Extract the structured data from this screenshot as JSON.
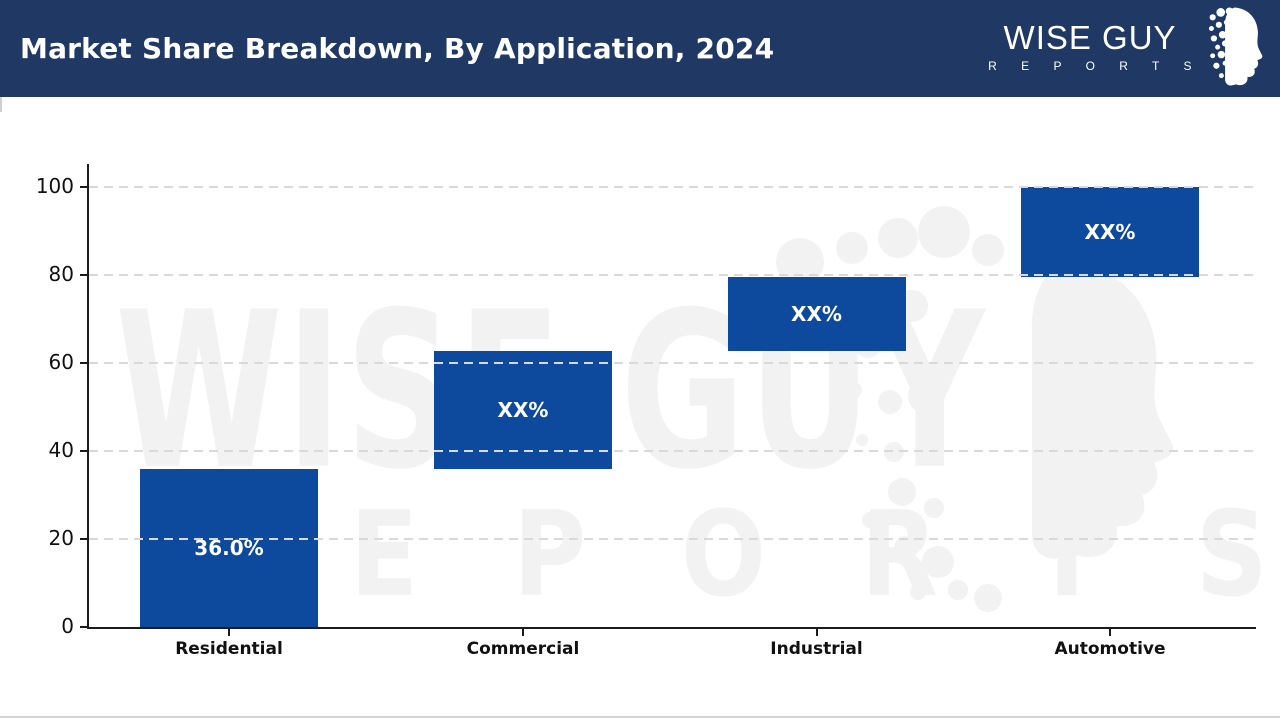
{
  "header": {
    "title": "Market Share Breakdown, By Application, 2024",
    "bg_color": "#203864",
    "logo": {
      "line1": "WISE GUY",
      "line2": "R E P O R T S"
    }
  },
  "watermark": {
    "line1": "WISE GUY",
    "line2": "R E P O R T S",
    "color": "#f2f2f2"
  },
  "chart_data": {
    "type": "bar",
    "subtype": "waterfall",
    "title": "Market Share Breakdown, By Application, 2024",
    "categories": [
      "Residential",
      "Commercial",
      "Industrial",
      "Automotive"
    ],
    "segments": [
      {
        "category": "Residential",
        "start": 0,
        "end": 36.0,
        "label": "36.0%"
      },
      {
        "category": "Commercial",
        "start": 36.0,
        "end": 62.7,
        "label": "XX%"
      },
      {
        "category": "Industrial",
        "start": 62.7,
        "end": 79.5,
        "label": "XX%"
      },
      {
        "category": "Automotive",
        "start": 79.5,
        "end": 100.0,
        "label": "XX%"
      }
    ],
    "yticks": [
      0,
      20,
      40,
      60,
      80,
      100
    ],
    "ylim": [
      0,
      105
    ],
    "xlabel": "",
    "ylabel": "",
    "bar_color": "#0d4a9d",
    "grid": "horizontal-dashed",
    "legend": "none"
  }
}
